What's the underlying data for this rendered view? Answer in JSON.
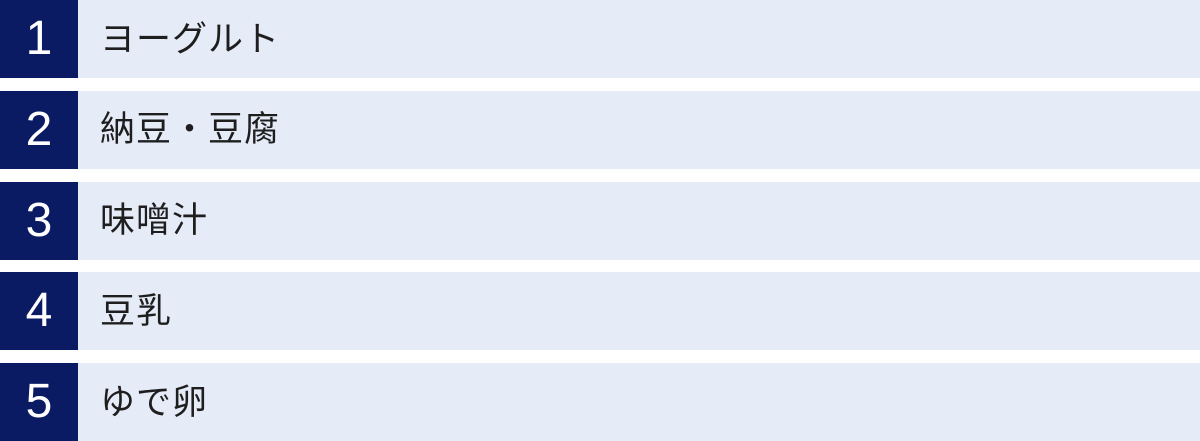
{
  "colors": {
    "rank_bg": "#0a1b63",
    "rank_text": "#ffffff",
    "row_bg": "#e6ebf8",
    "item_text": "#1e1e1e",
    "page_bg": "#ffffff"
  },
  "ranking": {
    "items": [
      {
        "rank": "1",
        "label": "ヨーグルト"
      },
      {
        "rank": "2",
        "label": "納豆・豆腐"
      },
      {
        "rank": "3",
        "label": "味噌汁"
      },
      {
        "rank": "4",
        "label": "豆乳"
      },
      {
        "rank": "5",
        "label": "ゆで卵"
      }
    ]
  }
}
